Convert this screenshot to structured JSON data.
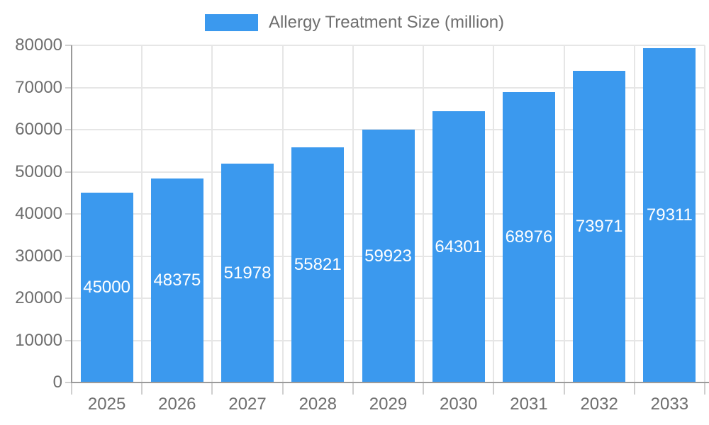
{
  "chart_data": {
    "type": "bar",
    "title": "Allergy Treatment Size (million)",
    "legend": [
      "Allergy Treatment Size (million)"
    ],
    "legend_position": "top",
    "categories": [
      "2025",
      "2026",
      "2027",
      "2028",
      "2029",
      "2030",
      "2031",
      "2032",
      "2033"
    ],
    "values": [
      45000,
      48375,
      51978,
      55821,
      59923,
      64301,
      68976,
      73971,
      79311
    ],
    "xlabel": "",
    "ylabel": "",
    "ylim": [
      0,
      80000
    ],
    "ytick_step": 10000,
    "ytick_labels": [
      "0",
      "10000",
      "20000",
      "30000",
      "40000",
      "50000",
      "60000",
      "70000",
      "80000"
    ],
    "grid": true,
    "value_label_position": "inside-middle",
    "colors": {
      "bar": "#3B99EE",
      "grid": "#E6E6E6",
      "tick": "#CFCFCF",
      "axis": "#9A9A9A",
      "text": "#6E6E6E",
      "value_label": "#FFFFFF"
    }
  }
}
